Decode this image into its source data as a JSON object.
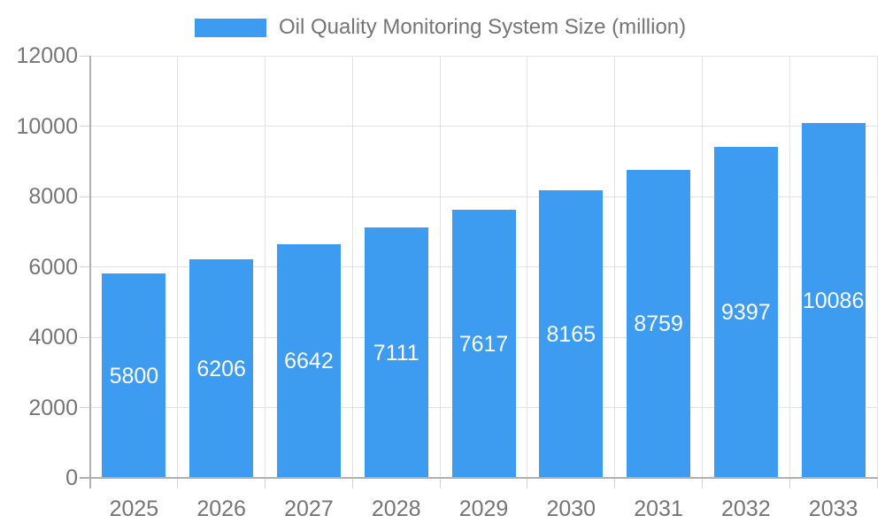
{
  "legend": {
    "label": "Oil Quality Monitoring System Size (million)"
  },
  "colors": {
    "bar": "#3D9BF0",
    "grid": "#E2E2E2",
    "axis": "#B0B0B0",
    "tick_mark": "#D4D4D4",
    "axis_text": "#757575",
    "value_text": "#FFFFFF",
    "background": "#FFFFFF"
  },
  "chart_data": {
    "type": "bar",
    "title": "Oil Quality Monitoring System Size (million)",
    "categories": [
      "2025",
      "2026",
      "2027",
      "2028",
      "2029",
      "2030",
      "2031",
      "2032",
      "2033"
    ],
    "series": [
      {
        "name": "Oil Quality Monitoring System Size (million)",
        "values": [
          5800,
          6206,
          6642,
          7111,
          7617,
          8165,
          8759,
          9397,
          10086
        ]
      }
    ],
    "value_labels": [
      "5800",
      "6206",
      "6642",
      "7111",
      "7617",
      "8165",
      "8759",
      "9397",
      "10086"
    ],
    "xlabel": "",
    "ylabel": "",
    "ylim": [
      0,
      12000
    ],
    "yticks": [
      0,
      2000,
      4000,
      6000,
      8000,
      10000,
      12000
    ],
    "ytick_labels": [
      "0",
      "2000",
      "4000",
      "6000",
      "8000",
      "10000",
      "12000"
    ],
    "grid": true,
    "vertical_gridlines": true,
    "legend_position": "top",
    "value_label_position": "inside-center"
  }
}
